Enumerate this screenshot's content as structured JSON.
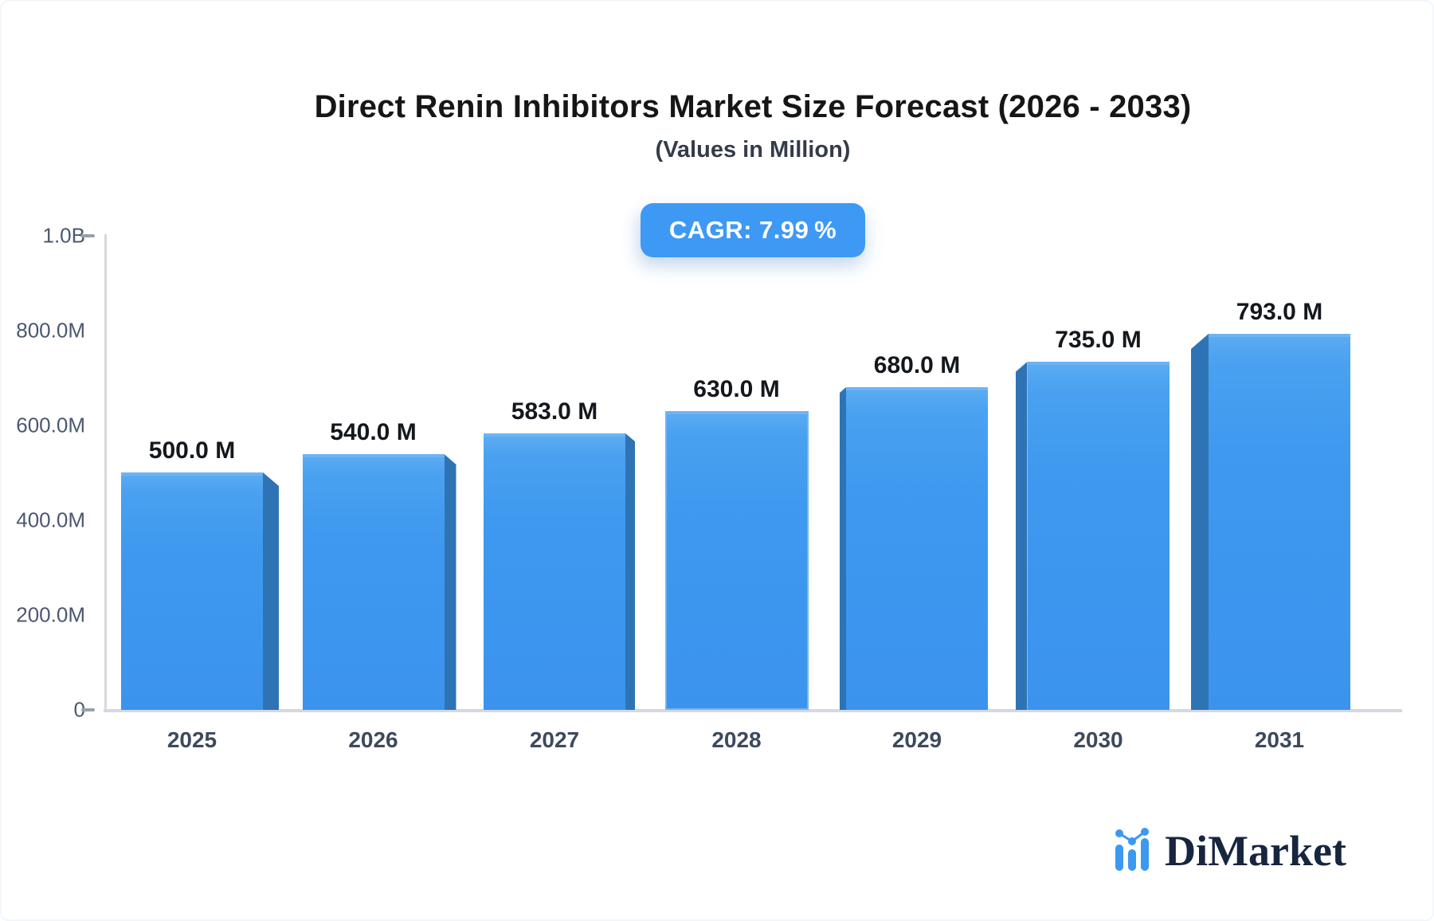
{
  "header": {
    "title": "Direct Renin Inhibitors Market Size Forecast (2026 - 2033)",
    "subtitle": "(Values in Million)",
    "cagr_badge": "CAGR: 7.99 %"
  },
  "chart_data": {
    "type": "bar",
    "title": "Direct Renin Inhibitors Market Size Forecast (2026 - 2033)",
    "subtitle": "(Values in Million)",
    "cagr": "7.99%",
    "categories": [
      "2025",
      "2026",
      "2027",
      "2028",
      "2029",
      "2030",
      "2031"
    ],
    "values": [
      500.0,
      540.0,
      583.0,
      630.0,
      680.0,
      735.0,
      793.0
    ],
    "bar_labels": [
      "500.0 M",
      "540.0 M",
      "583.0 M",
      "630.0 M",
      "680.0 M",
      "735.0 M",
      "793.0 M"
    ],
    "ylim": [
      0,
      1000
    ],
    "ytick_values": [
      0,
      200,
      400,
      600,
      800,
      1000
    ],
    "ytick_labels": [
      "0",
      "200.0M",
      "400.0M",
      "600.0M",
      "800.0M",
      "1.0B"
    ],
    "grid": false,
    "legend": false,
    "bar_color": "#3e97ef",
    "bar_side_color": "#2e74b4",
    "badge_color": "#3e99f4"
  },
  "logo": {
    "name": "DiMarket",
    "icon": "mini-bar-line-chart-icon",
    "icon_color": "#3b99f0"
  }
}
